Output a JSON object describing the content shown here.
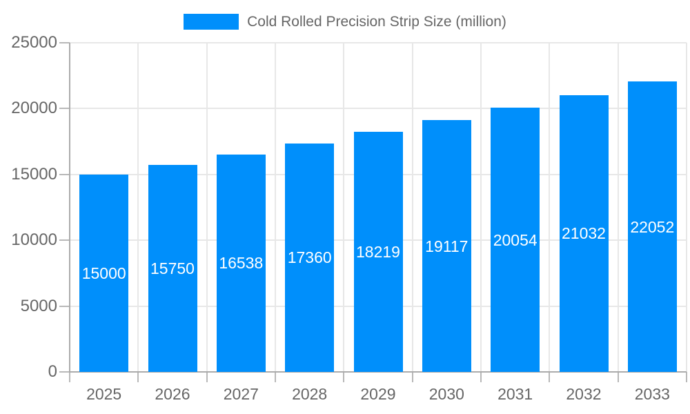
{
  "chart_data": {
    "type": "bar",
    "title": "",
    "legend_label": "Cold Rolled Precision Strip Size (million)",
    "legend_position": "top",
    "categories": [
      "2025",
      "2026",
      "2027",
      "2028",
      "2029",
      "2030",
      "2031",
      "2032",
      "2033"
    ],
    "series": [
      {
        "name": "Cold Rolled Precision Strip Size (million)",
        "values": [
          15000,
          15750,
          16538,
          17360,
          18219,
          19117,
          20054,
          21032,
          22052
        ]
      }
    ],
    "data_labels": [
      "15000",
      "15750",
      "16538",
      "17360",
      "18219",
      "19117",
      "20054",
      "21032",
      "22052"
    ],
    "xlabel": "",
    "ylabel": "",
    "ylim": [
      0,
      25000
    ],
    "yticks": [
      0,
      5000,
      10000,
      15000,
      20000,
      25000
    ],
    "ytick_labels": [
      "0",
      "5000",
      "10000",
      "15000",
      "20000",
      "25000"
    ],
    "grid": true,
    "colors": {
      "bar": "#008FFB",
      "bar_label_text": "#FFFFFF",
      "axis_text": "#666666",
      "legend_text": "#666666",
      "grid_line": "#E7E7E7",
      "axis_line": "#ABABAB",
      "tick_mark": "#B8B8B8",
      "background": "#FFFFFF"
    }
  }
}
